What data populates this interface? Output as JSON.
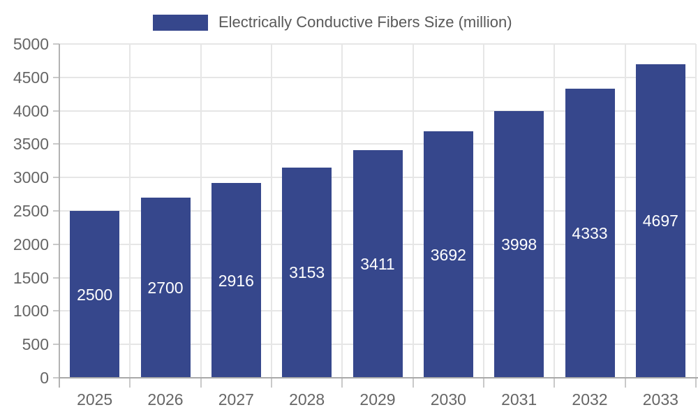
{
  "chart_data": {
    "type": "bar",
    "title": "Electrically Conductive Fibers Size (million)",
    "legend_position": "top-center",
    "categories": [
      "2025",
      "2026",
      "2027",
      "2028",
      "2029",
      "2030",
      "2031",
      "2032",
      "2033"
    ],
    "series": [
      {
        "name": "Electrically Conductive Fibers Size (million)",
        "values": [
          2500,
          2700,
          2916,
          3153,
          3411,
          3692,
          3998,
          4333,
          4697
        ]
      }
    ],
    "xlabel": "",
    "ylabel": "",
    "ylim": [
      0,
      5000
    ],
    "ytick_step": 500,
    "grid": true,
    "value_labels": "inside-center",
    "colors": {
      "bar": "#36478C",
      "value_label": "#FFFFFF",
      "x_axis_line": "#A9A9A9",
      "y_axis_line": "#B3B3B3",
      "tick_mark": "#C9C9C9",
      "gridline": "#E6E6E6",
      "tick_label": "#666666",
      "legend_text": "#595959",
      "background": "#FFFFFF"
    }
  }
}
